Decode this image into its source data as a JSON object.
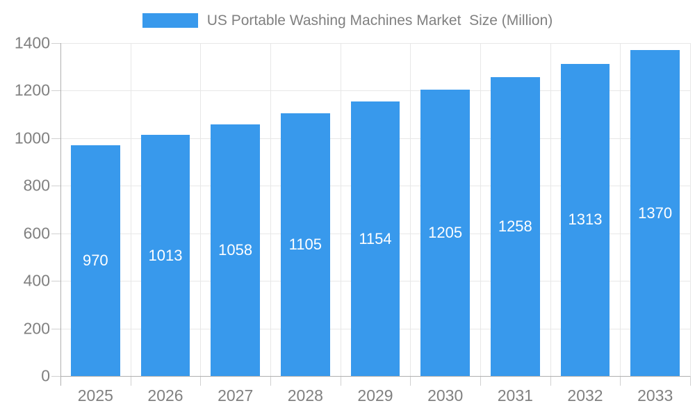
{
  "colors": {
    "background": "#FFFFFF",
    "bar": "#3899EC",
    "grid": "#E7E7E7",
    "axis_line": "#B0B0B0",
    "tick": "#D0D0D0",
    "axis_text": "#808080",
    "bar_label_text": "#FFFFFF"
  },
  "legend": {
    "label": "US Portable Washing Machines Market  Size (Million)"
  },
  "chart_data": {
    "type": "bar",
    "title": "US Portable Washing Machines Market  Size (Million)",
    "categories": [
      "2025",
      "2026",
      "2027",
      "2028",
      "2029",
      "2030",
      "2031",
      "2032",
      "2033"
    ],
    "values": [
      970,
      1013,
      1058,
      1105,
      1154,
      1205,
      1258,
      1313,
      1370
    ],
    "bar_labels": [
      "970",
      "1013",
      "1058",
      "1105",
      "1154",
      "1205",
      "1258",
      "1313",
      "1370"
    ],
    "xlabel": "",
    "ylabel": "",
    "ylim": [
      0,
      1400
    ],
    "yticks": [
      0,
      200,
      400,
      600,
      800,
      1000,
      1200,
      1400
    ],
    "grid": true,
    "legend_position": "top-center",
    "bar_width_fraction": 0.7,
    "value_label_position": "center-of-bar"
  }
}
